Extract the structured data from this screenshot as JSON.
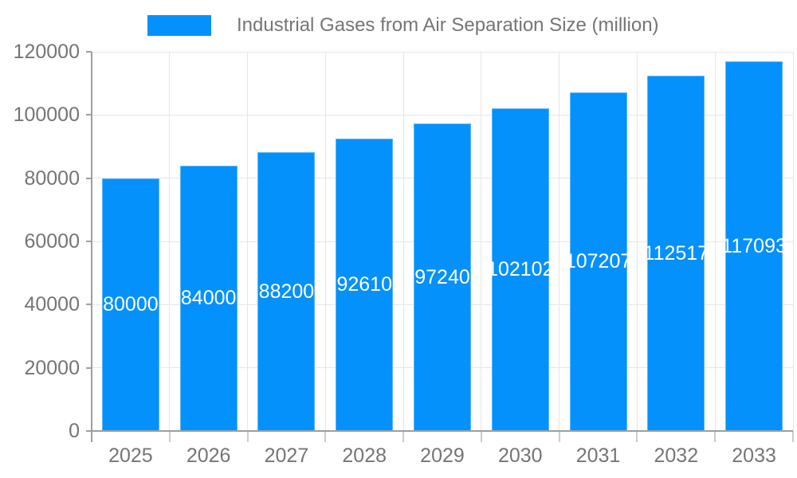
{
  "chart_data": {
    "type": "bar",
    "title": "Industrial Gases from Air Separation Size (million)",
    "categories": [
      "2025",
      "2026",
      "2027",
      "2028",
      "2029",
      "2030",
      "2031",
      "2032",
      "2033"
    ],
    "values": [
      80000,
      84000,
      88200,
      92610,
      97240,
      102102,
      107207,
      112517,
      117093
    ],
    "series_name": "Industrial Gases from Air Separation Size (million)",
    "y_ticks": [
      0,
      20000,
      40000,
      60000,
      80000,
      100000,
      120000
    ],
    "ylim": [
      0,
      120000
    ],
    "xlabel": "",
    "ylabel": "",
    "legend_position": "top",
    "grid": true,
    "data_labels_inside_bars": true,
    "colors": {
      "bar": "#0591fb",
      "bar_label_text": "#ffffff",
      "grid": "#e6e6e6",
      "axis_line": "#9e9e9e",
      "minor_tick": "#cccccc",
      "axis_text": "#757575",
      "title_text": "#757575",
      "background": "#ffffff"
    }
  }
}
